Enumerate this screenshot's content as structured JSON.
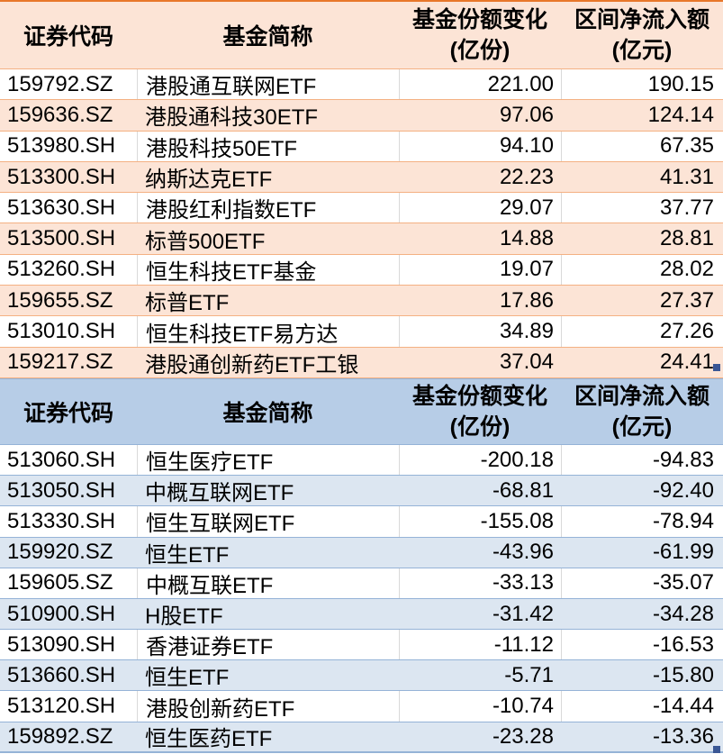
{
  "colors": {
    "text": "#000000",
    "positive_header_fill": "#FCE4D6",
    "positive_row_fill": "#FCE4D6",
    "positive_border": "#F4B183",
    "positive_top_border": "#E8772A",
    "negative_header_fill": "#B7CDE7",
    "negative_row_fill": "#DCE6F1",
    "negative_border": "#95B3D7",
    "gridline": "#D9D9D9",
    "fill_handle": "#3A5795"
  },
  "inflow_table": {
    "headers": {
      "code": "证券代码",
      "name": "基金简称",
      "share_change_line1": "基金份额变化",
      "share_change_line2": "(亿份)",
      "net_inflow_line1": "区间净流入额",
      "net_inflow_line2": "(亿元)"
    },
    "rows": [
      {
        "code": "159792.SZ",
        "name": "港股通互联网ETF",
        "share_change": "221.00",
        "net_inflow": "190.15"
      },
      {
        "code": "159636.SZ",
        "name": "港股通科技30ETF",
        "share_change": "97.06",
        "net_inflow": "124.14"
      },
      {
        "code": "513980.SH",
        "name": "港股科技50ETF",
        "share_change": "94.10",
        "net_inflow": "67.35"
      },
      {
        "code": "513300.SH",
        "name": "纳斯达克ETF",
        "share_change": "22.23",
        "net_inflow": "41.31"
      },
      {
        "code": "513630.SH",
        "name": "港股红利指数ETF",
        "share_change": "29.07",
        "net_inflow": "37.77"
      },
      {
        "code": "513500.SH",
        "name": "标普500ETF",
        "share_change": "14.88",
        "net_inflow": "28.81"
      },
      {
        "code": "513260.SH",
        "name": "恒生科技ETF基金",
        "share_change": "19.07",
        "net_inflow": "28.02"
      },
      {
        "code": "159655.SZ",
        "name": "标普ETF",
        "share_change": "17.86",
        "net_inflow": "27.37"
      },
      {
        "code": "513010.SH",
        "name": "恒生科技ETF易方达",
        "share_change": "34.89",
        "net_inflow": "27.26"
      },
      {
        "code": "159217.SZ",
        "name": "港股通创新药ETF工银",
        "share_change": "37.04",
        "net_inflow": "24.41"
      }
    ]
  },
  "outflow_table": {
    "headers": {
      "code": "证券代码",
      "name": "基金简称",
      "share_change_line1": "基金份额变化",
      "share_change_line2": "(亿份)",
      "net_inflow_line1": "区间净流入额",
      "net_inflow_line2": "(亿元)"
    },
    "rows": [
      {
        "code": "513060.SH",
        "name": "恒生医疗ETF",
        "share_change": "-200.18",
        "net_inflow": "-94.83"
      },
      {
        "code": "513050.SH",
        "name": "中概互联网ETF",
        "share_change": "-68.81",
        "net_inflow": "-92.40"
      },
      {
        "code": "513330.SH",
        "name": "恒生互联网ETF",
        "share_change": "-155.08",
        "net_inflow": "-78.94"
      },
      {
        "code": "159920.SZ",
        "name": "恒生ETF",
        "share_change": "-43.96",
        "net_inflow": "-61.99"
      },
      {
        "code": "159605.SZ",
        "name": "中概互联ETF",
        "share_change": "-33.13",
        "net_inflow": "-35.07"
      },
      {
        "code": "510900.SH",
        "name": "H股ETF",
        "share_change": "-31.42",
        "net_inflow": "-34.28"
      },
      {
        "code": "513090.SH",
        "name": "香港证券ETF",
        "share_change": "-11.12",
        "net_inflow": "-16.53"
      },
      {
        "code": "513660.SH",
        "name": "恒生ETF",
        "share_change": "-5.71",
        "net_inflow": "-15.80"
      },
      {
        "code": "513120.SH",
        "name": "港股创新药ETF",
        "share_change": "-10.74",
        "net_inflow": "-14.44"
      },
      {
        "code": "159892.SZ",
        "name": "恒生医药ETF",
        "share_change": "-23.28",
        "net_inflow": "-13.36"
      }
    ]
  }
}
